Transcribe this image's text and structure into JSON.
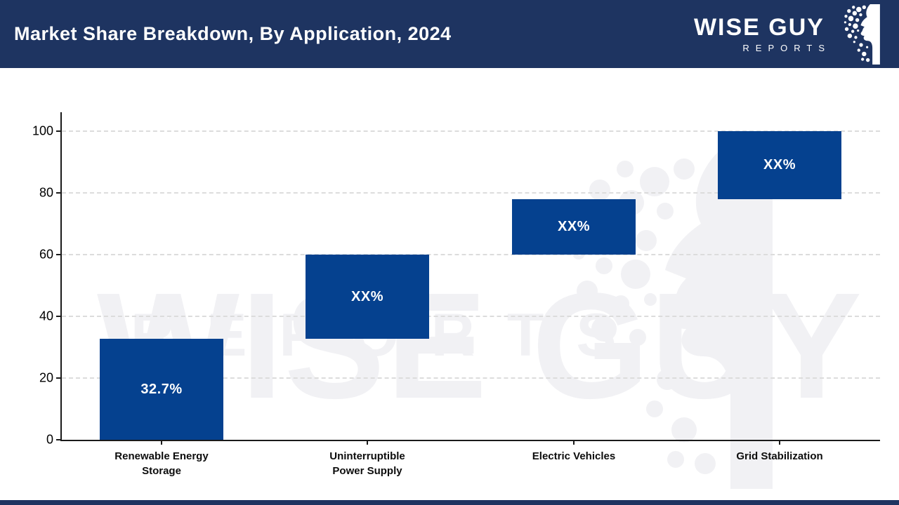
{
  "header": {
    "title": "Market Share Breakdown, By Application, 2024",
    "brand": {
      "line1": "WISE GUY",
      "line2": "REPORTS"
    }
  },
  "watermark": {
    "line1": "WISE GUY",
    "line2": "REPORTS"
  },
  "colors": {
    "header_bg": "#1e3461",
    "footer_bg": "#1e3461",
    "bar": "#05418f",
    "grid": "#dcdcdc",
    "axis": "#1a1a1a",
    "bar_label_text": "#ffffff",
    "watermark": "#f1f1f4"
  },
  "chart_data": {
    "type": "bar",
    "subtype": "waterfall",
    "title": "Market Share Breakdown, By Application, 2024",
    "ylabel": "",
    "xlabel": "",
    "ylim": [
      0,
      106
    ],
    "yticks": [
      0,
      20,
      40,
      60,
      80,
      100
    ],
    "grid": "horizontal dashed",
    "legend": "none",
    "values_note": "Bars 2-4 show masked placeholder labels (XX%); start/end estimated from gridlines",
    "bars": [
      {
        "category": "Renewable Energy Storage",
        "category_lines": [
          "Renewable Energy",
          "Storage"
        ],
        "label": "32.7%",
        "start": 0,
        "end": 32.7
      },
      {
        "category": "Uninterruptible Power Supply",
        "category_lines": [
          "Uninterruptible",
          "Power Supply"
        ],
        "label": "XX%",
        "start": 32.7,
        "end": 60
      },
      {
        "category": "Electric Vehicles",
        "category_lines": [
          "Electric Vehicles"
        ],
        "label": "XX%",
        "start": 60,
        "end": 78
      },
      {
        "category": "Grid Stabilization",
        "category_lines": [
          "Grid Stabilization"
        ],
        "label": "XX%",
        "start": 78,
        "end": 100
      }
    ]
  }
}
